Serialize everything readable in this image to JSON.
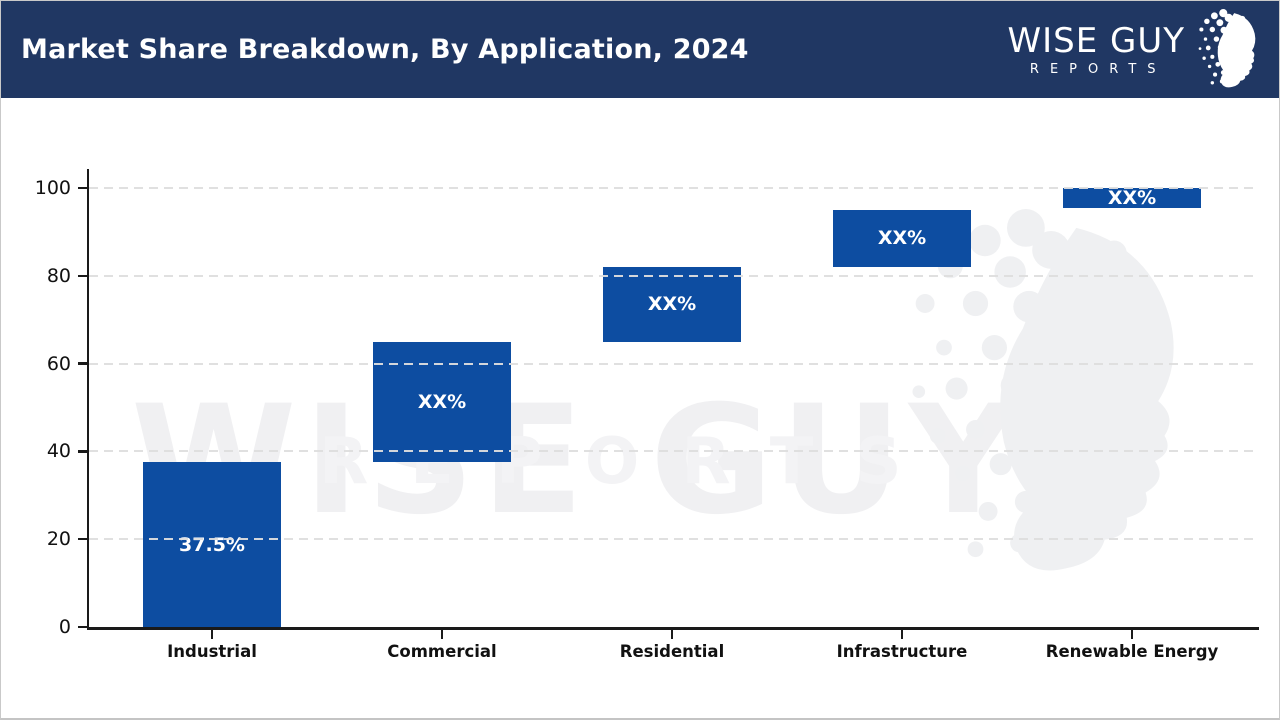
{
  "header": {
    "title": "Market Share Breakdown, By Application, 2024",
    "bg_color": "#203763"
  },
  "brand": {
    "name": "WISE GUY",
    "sub": "REPORTS"
  },
  "watermark": {
    "line1": "WISE GUY",
    "line2": "REPORTS"
  },
  "chart_data": {
    "type": "bar",
    "subtype": "waterfall",
    "title": "",
    "xlabel": "",
    "ylabel": "",
    "ylim": [
      0,
      100
    ],
    "yticks": [
      0,
      20,
      40,
      60,
      80,
      100
    ],
    "grid": "dashed-horizontal",
    "legend": "none",
    "bar_color": "#0D4DA1",
    "label_color": "#FFFFFF",
    "categories": [
      "Industrial",
      "Commercial",
      "Residential",
      "Infrastructure",
      "Renewable Energy"
    ],
    "segments": [
      {
        "category": "Industrial",
        "start": 0,
        "end": 37.5,
        "label": "37.5%"
      },
      {
        "category": "Commercial",
        "start": 37.5,
        "end": 65,
        "label": "XX%"
      },
      {
        "category": "Residential",
        "start": 65,
        "end": 82,
        "label": "XX%"
      },
      {
        "category": "Infrastructure",
        "start": 82,
        "end": 95,
        "label": "XX%"
      },
      {
        "category": "Renewable Energy",
        "start": 95.5,
        "end": 100,
        "label": "XX%"
      }
    ]
  }
}
